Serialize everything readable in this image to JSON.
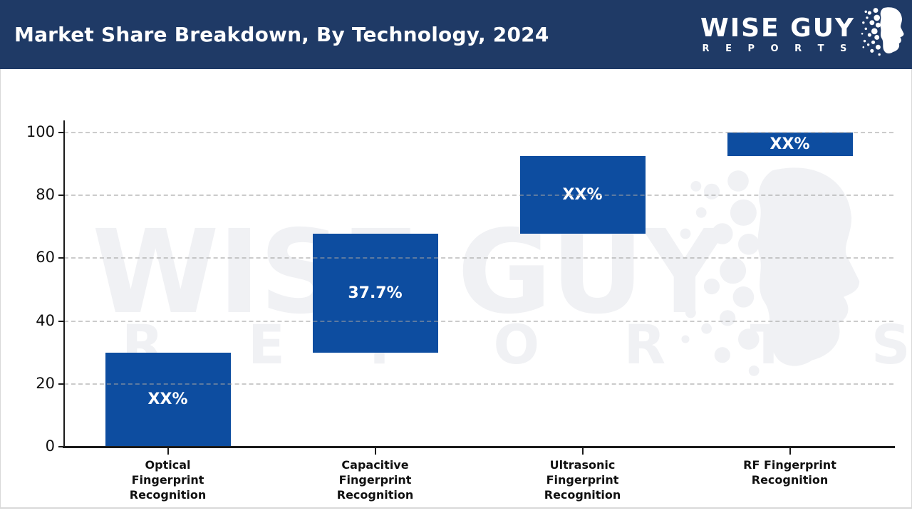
{
  "header": {
    "title": "Market Share Breakdown, By Technology, 2024",
    "logo_line1": "WISE GUY",
    "logo_line2": "R E P O R T S",
    "bg_color": "#1f3a66"
  },
  "watermark": {
    "line1": "WISE GUY",
    "line2": "R E P O R T S"
  },
  "chart_data": {
    "type": "bar",
    "variant": "floating-waterfall",
    "title": "Market Share Breakdown, By Technology, 2024",
    "xlabel": "",
    "ylabel": "",
    "ylim": [
      0,
      100
    ],
    "yticks": [
      0,
      20,
      40,
      60,
      80,
      100
    ],
    "grid": "horizontal-dashed",
    "legend": "none",
    "bar_color": "#0d4da0",
    "value_label_color": "#ffffff",
    "categories": [
      "Optical Fingerprint Recognition",
      "Capacitive Fingerprint Recognition",
      "Ultrasonic Fingerprint Recognition",
      "RF Fingerprint Recognition"
    ],
    "category_label_lines": [
      [
        "Optical",
        "Fingerprint",
        "Recognition"
      ],
      [
        "Capacitive",
        "Fingerprint",
        "Recognition"
      ],
      [
        "Ultrasonic",
        "Fingerprint",
        "Recognition"
      ],
      [
        "RF Fingerprint",
        "Recognition"
      ]
    ],
    "bars": [
      {
        "category": "Optical Fingerprint Recognition",
        "base": 0,
        "top": 30,
        "segment_value": 30,
        "label": "XX%"
      },
      {
        "category": "Capacitive Fingerprint Recognition",
        "base": 30,
        "top": 67.7,
        "segment_value": 37.7,
        "label": "37.7%"
      },
      {
        "category": "Ultrasonic Fingerprint Recognition",
        "base": 67.7,
        "top": 92.5,
        "segment_value": 24.8,
        "label": "XX%"
      },
      {
        "category": "RF Fingerprint Recognition",
        "base": 92.5,
        "top": 100,
        "segment_value": 7.5,
        "label": "XX%"
      }
    ]
  },
  "colors": {
    "header_bg": "#1f3a66",
    "bar_blue": "#0d4da0",
    "watermark_gray": "#f0f1f4",
    "axis_black": "#1a1a1a",
    "grid_gray": "#cfcfcf"
  }
}
